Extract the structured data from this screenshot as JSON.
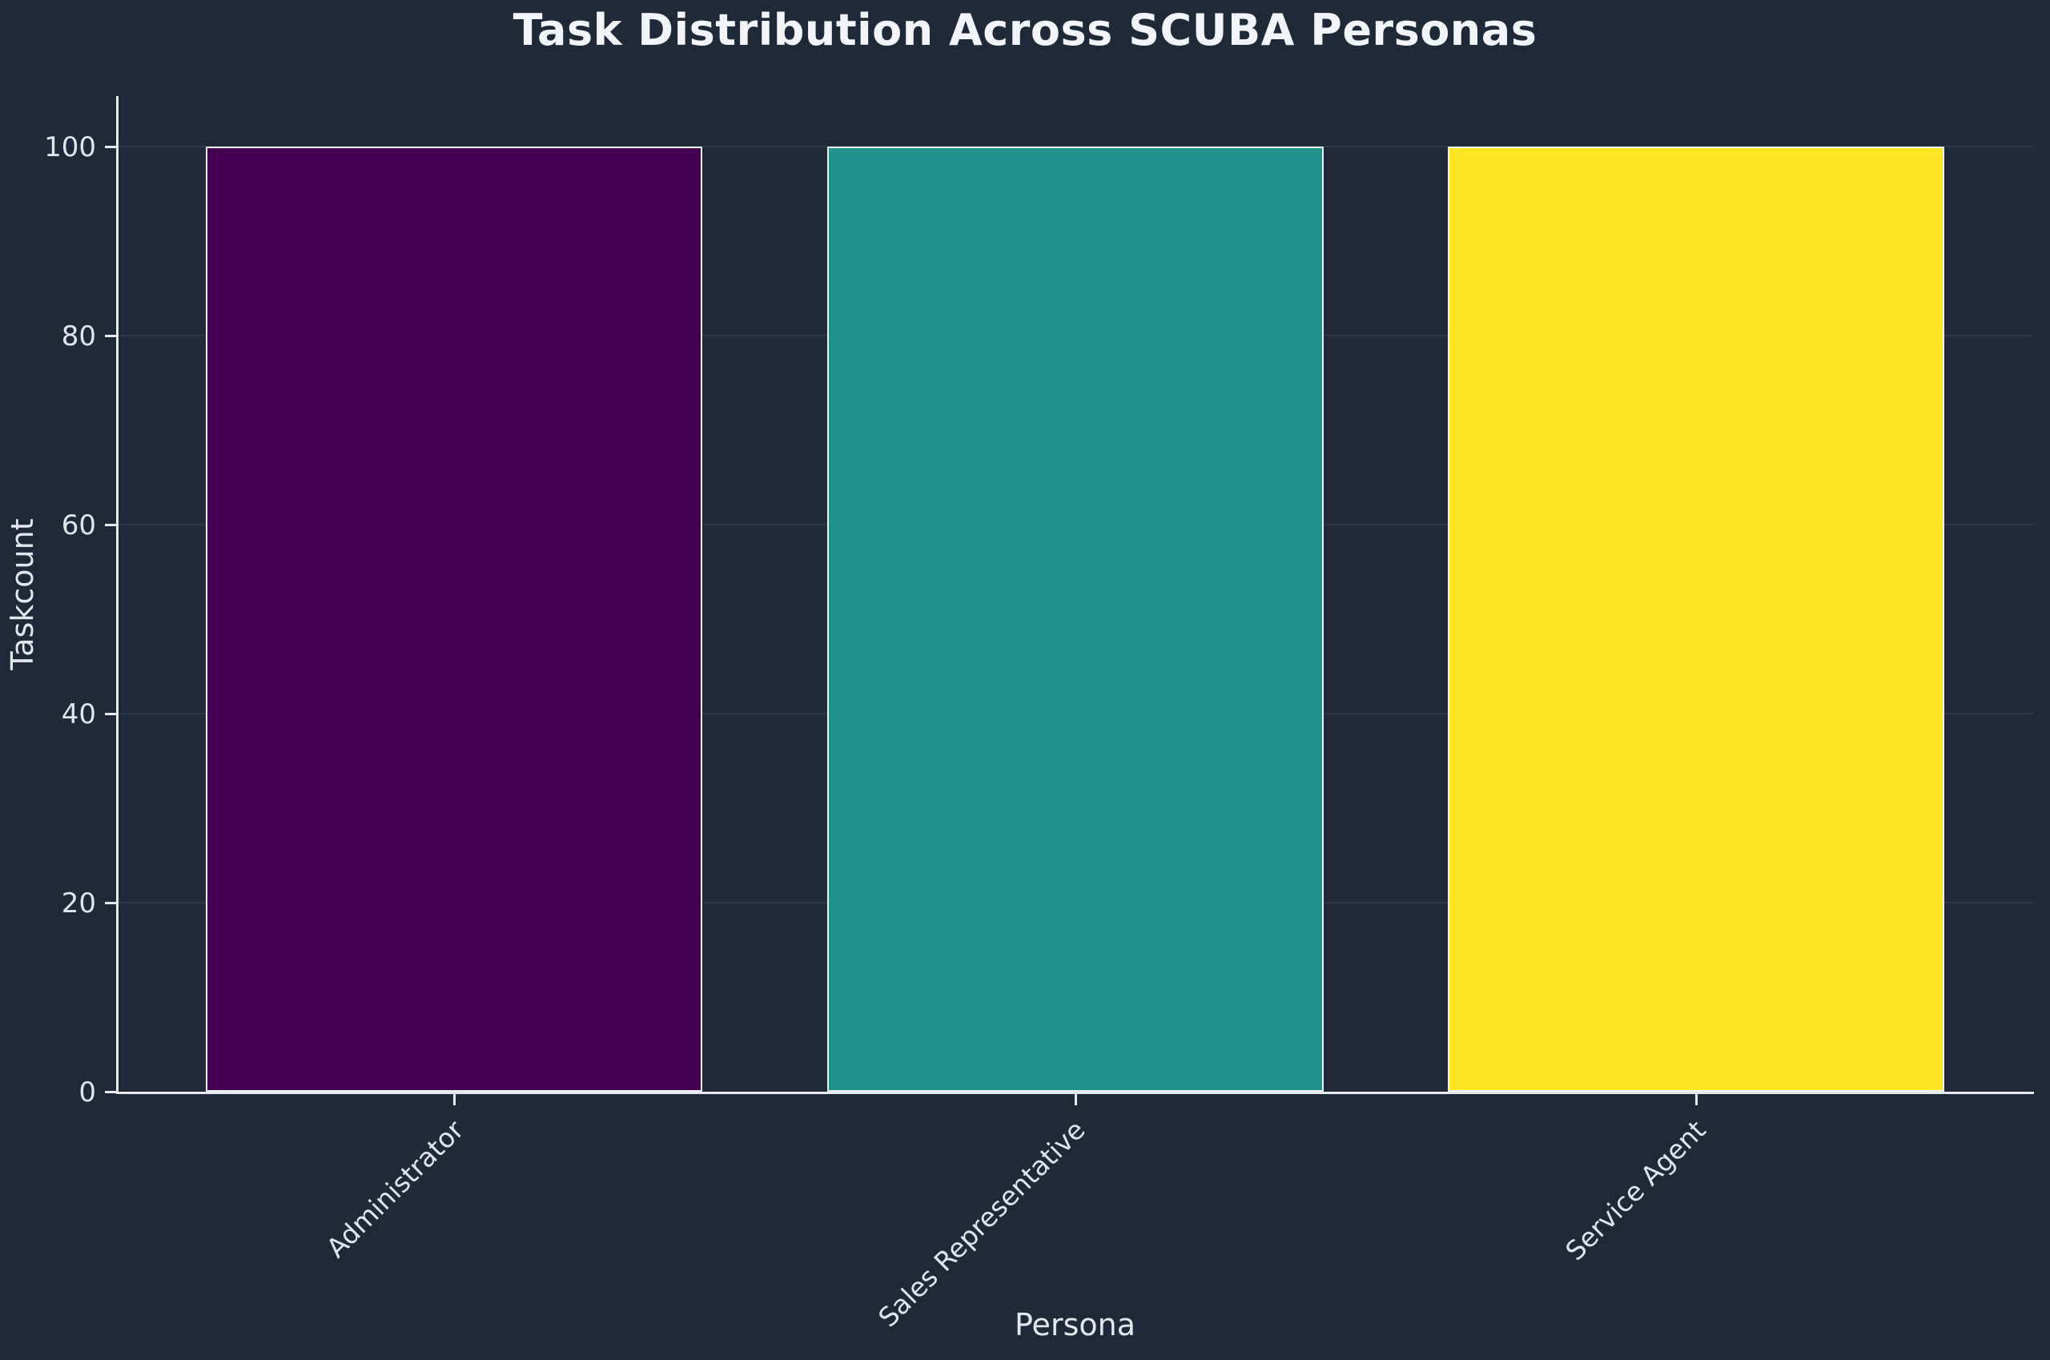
{
  "chart_data": {
    "type": "bar",
    "title": "Task Distribution Across SCUBA Personas",
    "xlabel": "Persona",
    "ylabel": "Taskcount",
    "categories": [
      "Administrator",
      "Sales Representative",
      "Service Agent"
    ],
    "values": [
      100,
      100,
      100
    ],
    "series": [
      {
        "name": "Taskcount",
        "values": [
          100,
          100,
          100
        ]
      }
    ],
    "yticks": [
      0,
      20,
      40,
      60,
      80,
      100
    ],
    "ylim": [
      0,
      105
    ],
    "xtick_rotation_deg": 45,
    "grid": "horizontal, faint, behind bars",
    "legend": "none",
    "theme": "dark",
    "colors": {
      "background": "#1f2937",
      "bar_fill": [
        "#440154",
        "#21918c",
        "#fde725"
      ],
      "bar_edge": "#edf1f6",
      "axis": "#e6eaf0",
      "tick_label": "#dfe5ed",
      "title_text": "#f1f4f8",
      "axis_label_text": "#e2e7ee",
      "gridline": "rgba(214,228,248,0.08)"
    }
  }
}
